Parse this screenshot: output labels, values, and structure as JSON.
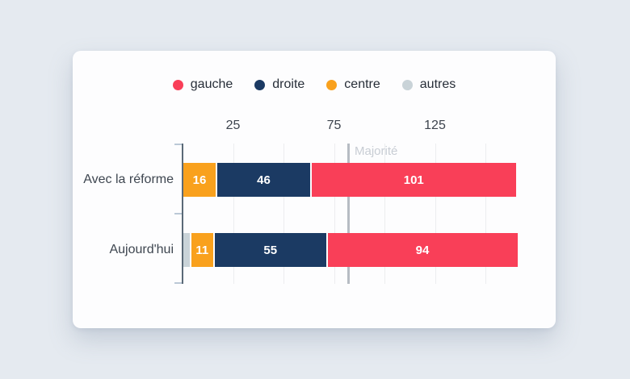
{
  "colors": {
    "gauche": "#F93F58",
    "droite": "#1B3A63",
    "centre": "#F9A11D",
    "autres": "#C9D3D8",
    "majority_line": "#B6BCC3",
    "axis": "#5A6977",
    "background": "#E5EAF0",
    "card": "#FDFDFE"
  },
  "legend": {
    "items": [
      {
        "key": "gauche",
        "label": "gauche"
      },
      {
        "key": "droite",
        "label": "droite"
      },
      {
        "key": "centre",
        "label": "centre"
      },
      {
        "key": "autres",
        "label": "autres"
      }
    ]
  },
  "chart_data": {
    "type": "bar",
    "orientation": "horizontal",
    "stacked": true,
    "xlim": [
      0,
      163
    ],
    "x_ticks": [
      25,
      75,
      125
    ],
    "gridlines": [
      25,
      50,
      75,
      100,
      125,
      150
    ],
    "annotation": {
      "label": "Majorité",
      "value": 82
    },
    "categories": [
      "Avec la réforme",
      "Aujourd'hui"
    ],
    "rows": [
      {
        "label": "Avec la réforme",
        "segments": [
          {
            "party": "centre",
            "value": 16,
            "show_value": true
          },
          {
            "party": "droite",
            "value": 46,
            "show_value": true
          },
          {
            "party": "gauche",
            "value": 101,
            "show_value": true
          }
        ]
      },
      {
        "label": "Aujourd'hui",
        "segments": [
          {
            "party": "autres",
            "value": 3,
            "show_value": false
          },
          {
            "party": "centre",
            "value": 11,
            "show_value": true
          },
          {
            "party": "droite",
            "value": 55,
            "show_value": true
          },
          {
            "party": "gauche",
            "value": 94,
            "show_value": true
          }
        ]
      }
    ]
  }
}
